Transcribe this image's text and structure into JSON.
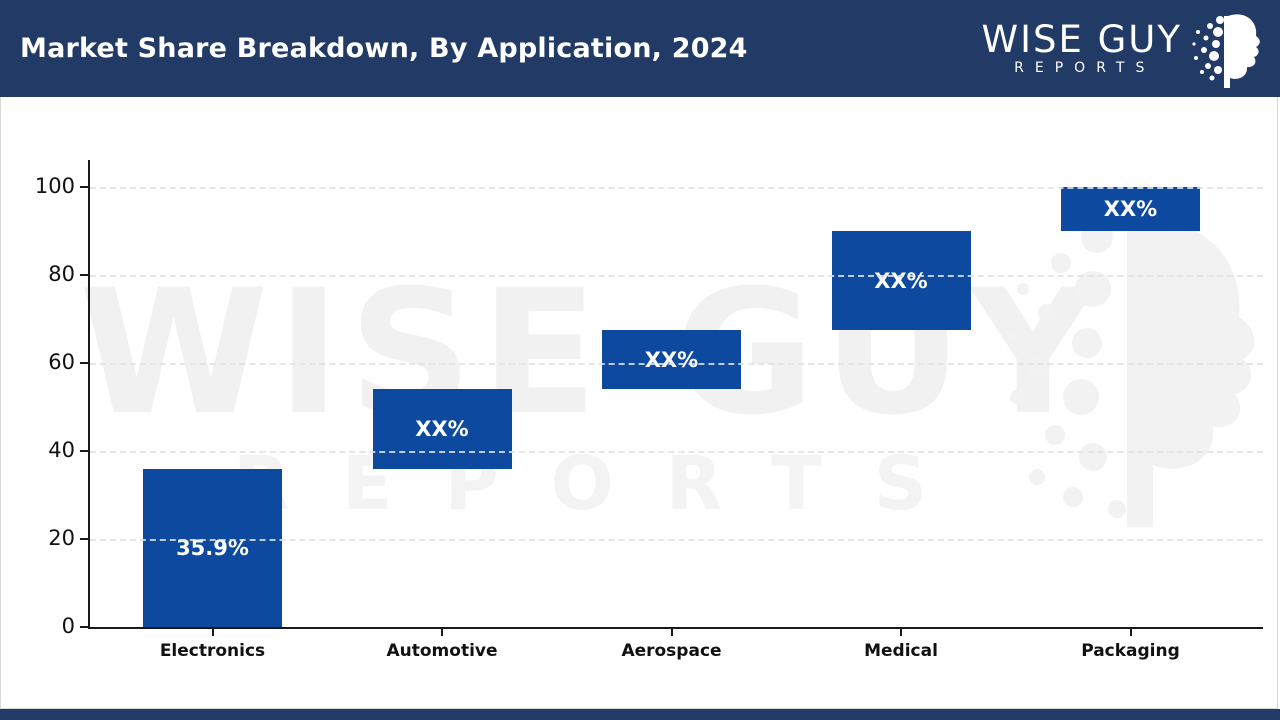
{
  "header": {
    "title": "Market Share Breakdown, By Application, 2024",
    "logo_line1": "WISE GUY",
    "logo_line2": "REPORTS"
  },
  "watermark": {
    "line1": "WISE GUY",
    "line2": "REPORTS"
  },
  "colors": {
    "header_bg": "#223a66",
    "bar": "#0d4a9f",
    "grid": "#e2e2e2",
    "axis": "#1a1a1a",
    "watermark": "#f1f1f1"
  },
  "chart_data": {
    "type": "bar",
    "subtype": "waterfall",
    "title": "Market Share Breakdown, By Application, 2024",
    "categories": [
      "Electronics",
      "Automotive",
      "Aerospace",
      "Medical",
      "Packaging"
    ],
    "segments": [
      {
        "category": "Electronics",
        "start": 0,
        "end": 35.9,
        "label": "35.9%"
      },
      {
        "category": "Automotive",
        "start": 35.9,
        "end": 54,
        "label": "XX%"
      },
      {
        "category": "Aerospace",
        "start": 54,
        "end": 67.5,
        "label": "XX%"
      },
      {
        "category": "Medical",
        "start": 67.5,
        "end": 90,
        "label": "XX%"
      },
      {
        "category": "Packaging",
        "start": 90,
        "end": 100,
        "label": "XX%"
      }
    ],
    "y_ticks": [
      0,
      20,
      40,
      60,
      80,
      100
    ],
    "ylim": [
      0,
      100
    ],
    "grid": "horizontal-dashed",
    "legend": false,
    "xlabel": "",
    "ylabel": ""
  }
}
